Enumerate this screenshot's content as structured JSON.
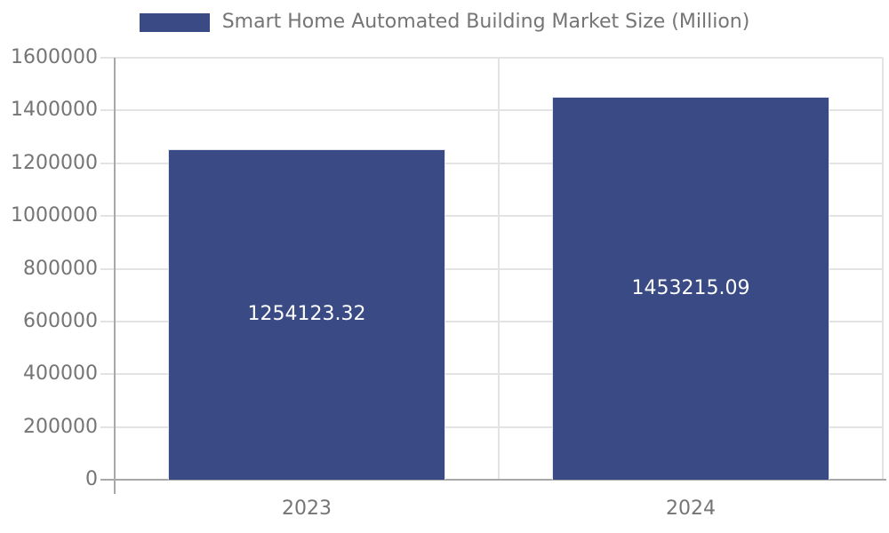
{
  "legend": {
    "items": [
      {
        "label": "Smart Home Automated Building Market Size (Million)"
      }
    ]
  },
  "chart_data": {
    "type": "bar",
    "title": "Smart Home Automated Building Market Size (Million)",
    "categories": [
      "2023",
      "2024"
    ],
    "values": [
      1254123.32,
      1453215.09
    ],
    "value_labels": [
      "1254123.32",
      "1453215.09"
    ],
    "xlabel": "",
    "ylabel": "",
    "ylim": [
      0,
      1600000
    ],
    "ytick_step": 200000,
    "ytick_labels": [
      "0",
      "200000",
      "400000",
      "600000",
      "800000",
      "1000000",
      "1200000",
      "1400000",
      "1600000"
    ],
    "grid": true,
    "legend_position": "top",
    "colors": {
      "bar": "#394a84",
      "bar_border": "#e4e4ee",
      "gridline": "#e3e3e3",
      "axis": "#a8a8a8",
      "tick_text": "#757575",
      "title_text": "#757575",
      "value_text": "#ffffff"
    }
  }
}
